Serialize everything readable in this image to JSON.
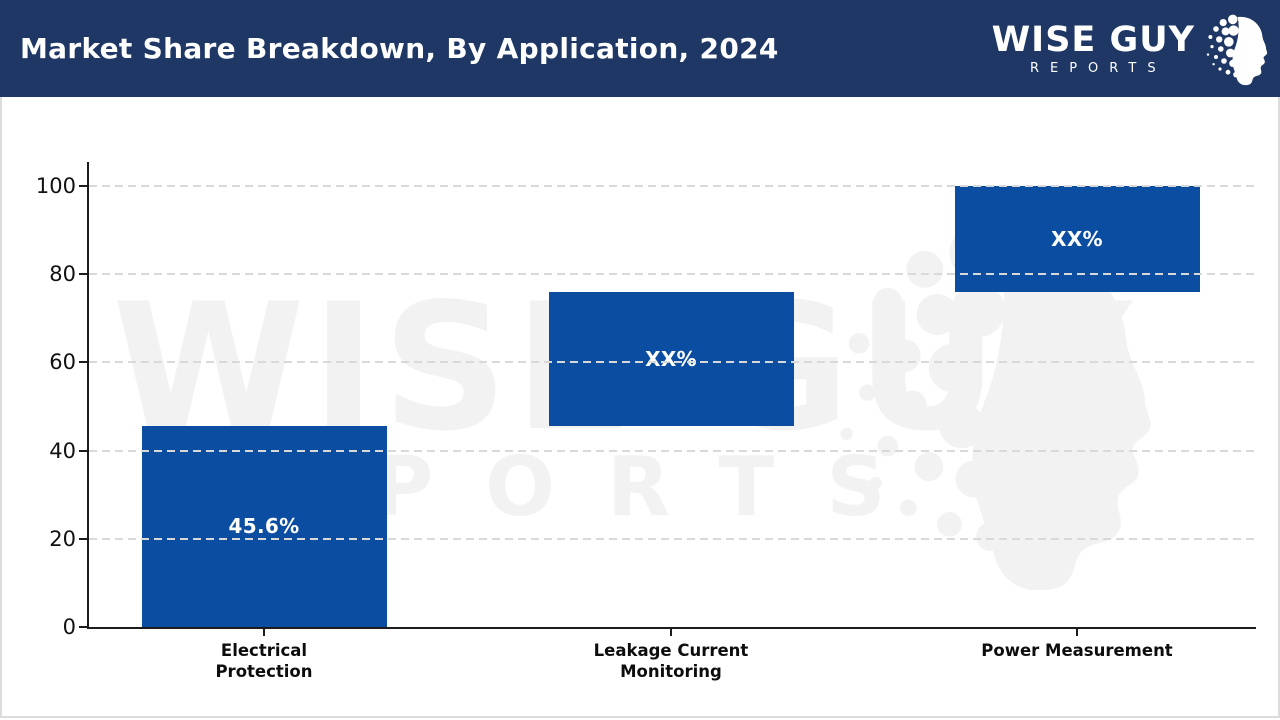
{
  "header": {
    "title": "Market Share Breakdown, By Application, 2024",
    "bg_color": "#1e3765",
    "logo": {
      "wordmark": "WISE GUY",
      "subtext": "REPORTS"
    }
  },
  "watermark": {
    "line1": "WISE GUY",
    "line2": "REPORTS"
  },
  "chart_data": {
    "type": "bar",
    "subtype": "floating-waterfall",
    "title": "Market Share Breakdown, By Application, 2024",
    "categories": [
      "Electrical Protection",
      "Leakage Current Monitoring",
      "Power Measurement"
    ],
    "categories_display": [
      "Electrical\nProtection",
      "Leakage Current\nMonitoring",
      "Power Measurement"
    ],
    "segments": [
      {
        "category": "Electrical Protection",
        "start": 0,
        "end": 45.6,
        "value_label": "45.6%"
      },
      {
        "category": "Leakage Current Monitoring",
        "start": 45.6,
        "end": 76,
        "value_label": "XX%"
      },
      {
        "category": "Power Measurement",
        "start": 76,
        "end": 100,
        "value_label": "XX%"
      }
    ],
    "yticks": [
      0,
      20,
      40,
      60,
      80,
      100
    ],
    "ylim": [
      0,
      105
    ],
    "bar_color": "#0b4da1",
    "value_label_color": "#ffffff",
    "grid": {
      "horizontal": true,
      "style": "dashed",
      "color": "#d9d9d9",
      "above_bars": true
    },
    "legend": null
  }
}
